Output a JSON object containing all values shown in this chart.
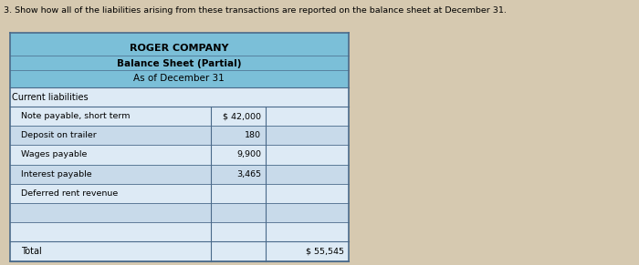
{
  "title_line1": "ROGER COMPANY",
  "title_line2": "Balance Sheet (Partial)",
  "title_line3": "As of December 31",
  "header_text": "3. Show how all of the liabilities arising from these transactions are reported on the balance sheet at December 31.",
  "section_label": "Current liabilities",
  "rows": [
    {
      "label": "Note payable, short term",
      "col1": "$ 42,000",
      "col2": ""
    },
    {
      "label": "Deposit on trailer",
      "col1": "180",
      "col2": ""
    },
    {
      "label": "Wages payable",
      "col1": "9,900",
      "col2": ""
    },
    {
      "label": "Interest payable",
      "col1": "3,465",
      "col2": ""
    },
    {
      "label": "Deferred rent revenue",
      "col1": "",
      "col2": ""
    },
    {
      "label": "",
      "col1": "",
      "col2": ""
    },
    {
      "label": "",
      "col1": "",
      "col2": ""
    }
  ],
  "total_label": "Total",
  "total_col2": "$ 55,545",
  "header_bg": "#7bbfd8",
  "row_bg_light": "#ddeaf5",
  "row_bg_mid": "#c8daea",
  "total_bg": "#ddeaf5",
  "table_border": "#4a6a8a",
  "page_bg": "#d6c9b0",
  "header_top_line": "#4a6a8a"
}
